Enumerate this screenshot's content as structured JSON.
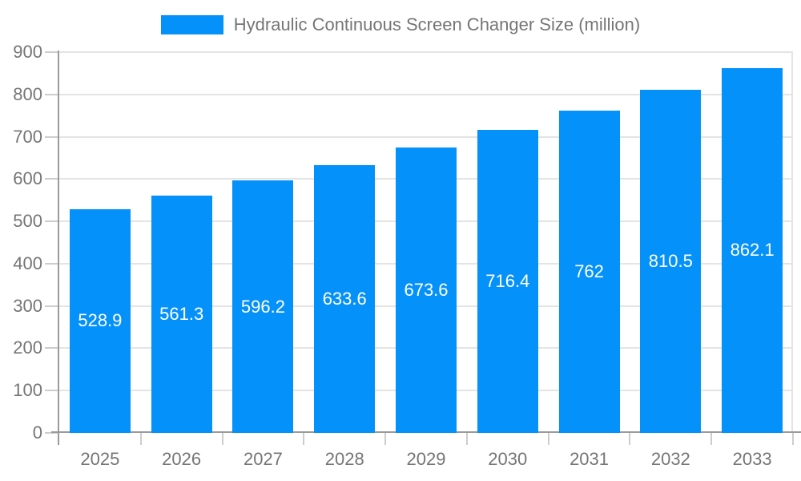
{
  "legend": {
    "label": "Hydraulic Continuous Screen Changer Size (million)"
  },
  "colors": {
    "bar": "#0591fa",
    "axis_line": "#9b9b9b",
    "grid_line": "#e4e4e4",
    "tick_line": "#cdcdcd",
    "text": "#757575",
    "bar_label": "#ffffff",
    "background": "#ffffff"
  },
  "chart_data": {
    "type": "bar",
    "title": "Hydraulic Continuous Screen Changer Size (million)",
    "categories": [
      "2025",
      "2026",
      "2027",
      "2028",
      "2029",
      "2030",
      "2031",
      "2032",
      "2033"
    ],
    "values": [
      528.9,
      561.3,
      596.2,
      633.6,
      673.6,
      716.4,
      762,
      810.5,
      862.1
    ],
    "value_labels": [
      "528.9",
      "561.3",
      "596.2",
      "633.6",
      "673.6",
      "716.4",
      "762",
      "810.5",
      "862.1"
    ],
    "xlabel": "",
    "ylabel": "",
    "ylim": [
      0,
      900
    ],
    "ytick_step": 100,
    "ytick_labels": [
      "0",
      "100",
      "200",
      "300",
      "400",
      "500",
      "600",
      "700",
      "800",
      "900"
    ],
    "grid": "horizontal",
    "legend_position": "top",
    "bar_label_position": "inside-center"
  }
}
